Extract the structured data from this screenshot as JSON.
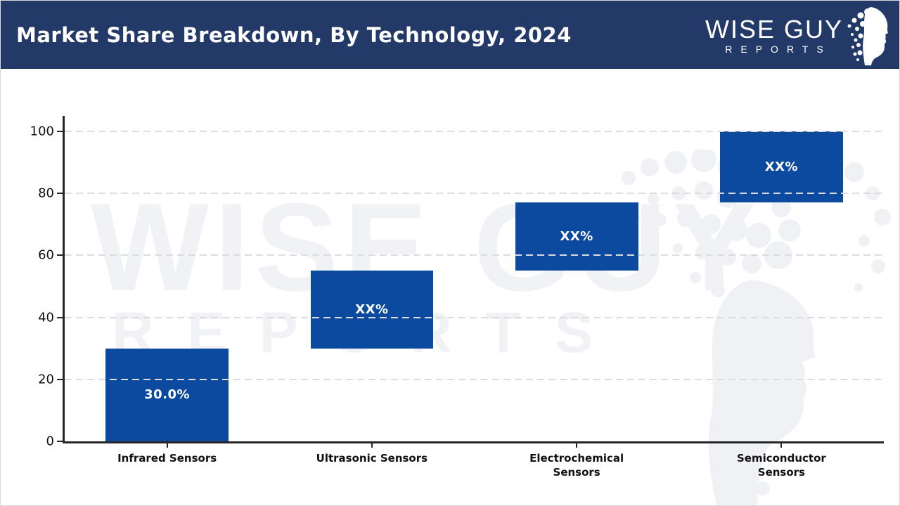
{
  "header": {
    "title": "Market Share Breakdown, By Technology, 2024"
  },
  "logo": {
    "wordmark": "WISE GUY",
    "subtitle": "REPORTS"
  },
  "watermark": {
    "wordmark": "WISE GUY",
    "subtitle": "REPORTS"
  },
  "colors": {
    "header_bg": "#233a69",
    "bar": "#0c4a9f",
    "bar_label": "#ffffff",
    "grid": "#dcdcdc",
    "axis": "#262626",
    "watermark": "#f1f2f5"
  },
  "chart_data": {
    "type": "bar",
    "subtype": "floating-waterfall",
    "title": "Market Share Breakdown, By Technology, 2024",
    "categories": [
      "Infrared Sensors",
      "Ultrasonic Sensors",
      "Electrochemical Sensors",
      "Semiconductor Sensors"
    ],
    "category_lines": [
      [
        "Infrared Sensors"
      ],
      [
        "Ultrasonic Sensors"
      ],
      [
        "Electrochemical",
        "Sensors"
      ],
      [
        "Semiconductor",
        "Sensors"
      ]
    ],
    "segments": [
      {
        "category": "Infrared Sensors",
        "start": 0,
        "end": 30,
        "size": 30,
        "label": "30.0%"
      },
      {
        "category": "Ultrasonic Sensors",
        "start": 30,
        "end": 55,
        "size": 25,
        "label": "XX%"
      },
      {
        "category": "Electrochemical Sensors",
        "start": 55,
        "end": 77,
        "size": 22,
        "label": "XX%"
      },
      {
        "category": "Semiconductor Sensors",
        "start": 77,
        "end": 100,
        "size": 23,
        "label": "XX%"
      }
    ],
    "ylabel": "",
    "xlabel": "",
    "yticks": [
      0,
      20,
      40,
      60,
      80,
      100
    ],
    "ylim": [
      0,
      105
    ],
    "bar_width_frac": 0.6,
    "grid": "horizontal dashed, drawn above bars",
    "legend": "none"
  }
}
